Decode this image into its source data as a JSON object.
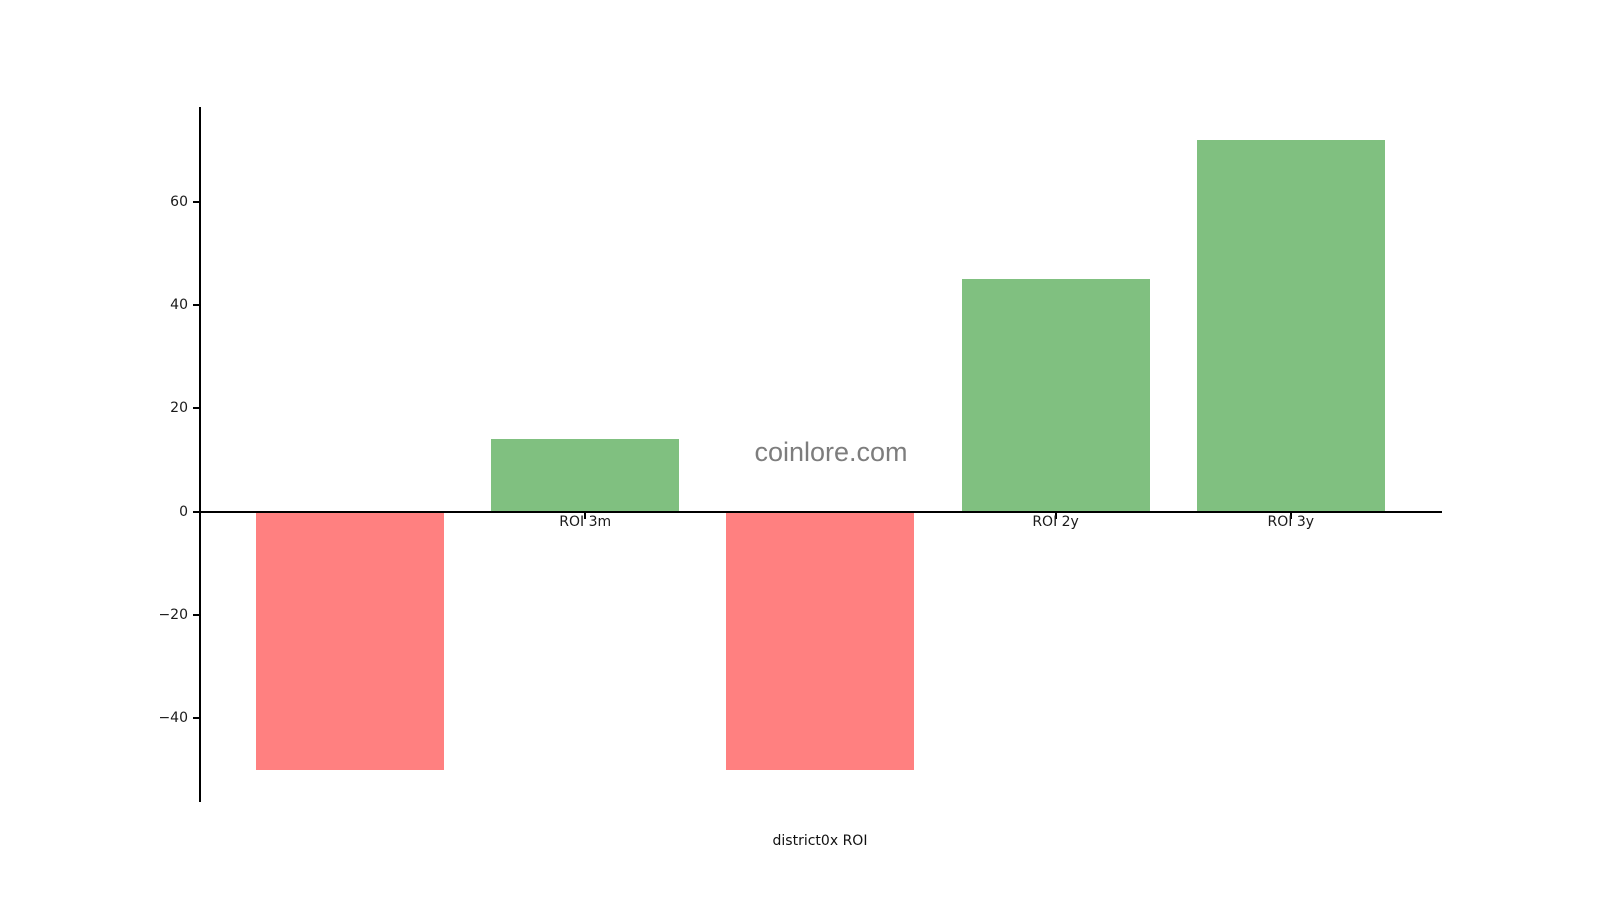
{
  "page": {
    "background": "#ffffff"
  },
  "watermark": {
    "text": "coinlore.com",
    "color": "#7d7d7d"
  },
  "chart_data": {
    "type": "bar",
    "title": "district0x ROI",
    "title_position": "bottom",
    "categories": [
      "",
      "ROI 3m",
      "",
      "ROI 2y",
      "ROI 3y"
    ],
    "values": [
      -50,
      14,
      -50,
      45,
      72
    ],
    "bar_colors": [
      "#ff8080",
      "#80c080",
      "#ff8080",
      "#80c080",
      "#80c080"
    ],
    "positive_color": "#80c080",
    "negative_color": "#ff8080",
    "yticks": [
      60,
      40,
      20,
      0,
      -20,
      -40
    ],
    "ylim": [
      -56.2,
      78.2
    ],
    "xlabel": "",
    "ylabel": "",
    "grid": false,
    "legend": false,
    "axis_color": "#000000",
    "tick_label_color": "#1a1a1a"
  }
}
